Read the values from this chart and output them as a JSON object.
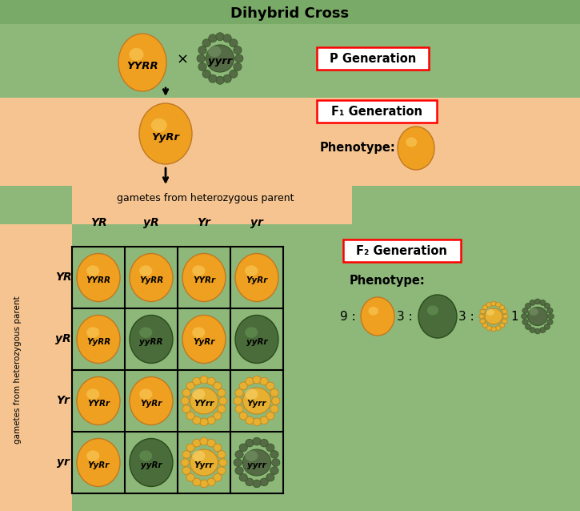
{
  "title": "Dihybrid Cross",
  "bg_green": "#8db87a",
  "bg_orange": "#f5c490",
  "bg_green_cell": "#8db87a",
  "title_green": "#7aaa68",
  "p_gen_label": "P Generation",
  "f1_gen_label": "F₁ Generation",
  "f2_gen_label": "F₂ Generation",
  "phenotype_label": "Phenotype:",
  "gametes_label": "gametes from heterozygous parent",
  "gametes_side_label": "gametes from heterozygous parent",
  "col_headers": [
    "YR",
    "yR",
    "Yr",
    "yr"
  ],
  "row_headers": [
    "YR",
    "yR",
    "Yr",
    "yr"
  ],
  "p_gen_left": "YYRR",
  "p_gen_right": "yyrr",
  "f1_gen": "YyRr",
  "grid": [
    [
      "YYRR",
      "YyRR",
      "YYRr",
      "YyRr"
    ],
    [
      "YyRR",
      "yyRR",
      "YyRr",
      "yyRr"
    ],
    [
      "YYRr",
      "YyRr",
      "YYrr",
      "Yyrr"
    ],
    [
      "YyRr",
      "yyRr",
      "Yyrr",
      "yyrr"
    ]
  ],
  "grid_colors": [
    [
      "yellow",
      "yellow",
      "yellow",
      "yellow"
    ],
    [
      "yellow",
      "green",
      "yellow",
      "green"
    ],
    [
      "yellow",
      "yellow",
      "yellow_wrinkled",
      "yellow_wrinkled"
    ],
    [
      "yellow",
      "green",
      "yellow_wrinkled",
      "green_wrinkled"
    ]
  ],
  "pea_yellow_face": "#f0a020",
  "pea_yellow_highlight": "#f8d060",
  "pea_yellow_edge": "#c07820",
  "pea_green_face": "#4a6b3a",
  "pea_green_highlight": "#6a9a5a",
  "pea_green_edge": "#2a4b1a",
  "pea_yw_face": "#e8b030",
  "pea_yw_highlight": "#f8d870",
  "pea_yw_edge": "#c08820",
  "pea_gw_face": "#556b45",
  "pea_gw_highlight": "#7a9a6a",
  "pea_gw_edge": "#3a5a2a"
}
